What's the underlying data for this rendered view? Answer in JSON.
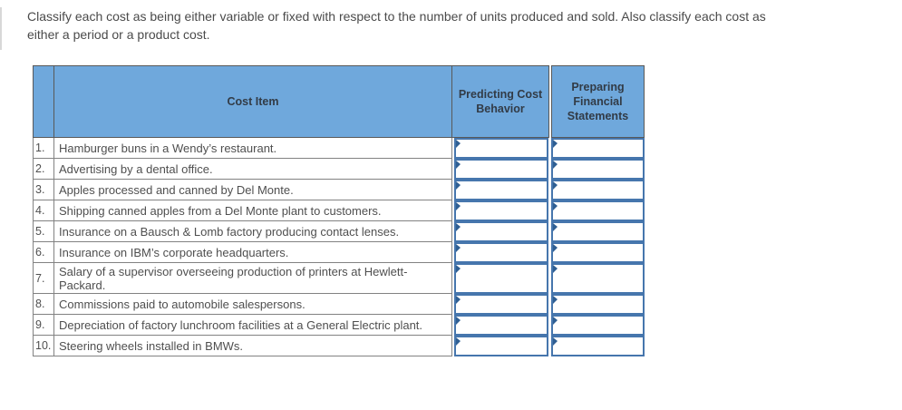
{
  "instructions": {
    "line1": "Classify each cost as being either variable or fixed with respect to the number of units produced and sold. Also classify each cost as",
    "line2": "either a period or a product cost."
  },
  "table": {
    "headers": {
      "cost_item": "Cost Item",
      "predicting": "Predicting Cost Behavior",
      "preparing": "Preparing Financial Statements"
    },
    "rows": [
      {
        "num": "1.",
        "item": "Hamburger buns in a Wendy’s restaurant."
      },
      {
        "num": "2.",
        "item": "Advertising by a dental office."
      },
      {
        "num": "3.",
        "item": "Apples processed and canned by Del Monte."
      },
      {
        "num": "4.",
        "item": "Shipping canned apples from a Del Monte plant to customers."
      },
      {
        "num": "5.",
        "item": "Insurance on a Bausch & Lomb factory producing contact lenses."
      },
      {
        "num": "6.",
        "item": "Insurance on IBM’s corporate headquarters."
      },
      {
        "num": "7.",
        "item": "Salary of a supervisor overseeing production of printers at Hewlett-Packard."
      },
      {
        "num": "8.",
        "item": "Commissions paid to automobile salespersons."
      },
      {
        "num": "9.",
        "item": "Depreciation of factory lunchroom facilities at a General Electric plant."
      },
      {
        "num": "10.",
        "item": "Steering wheels installed in BMWs."
      }
    ],
    "dropdown_cells_state": "empty"
  },
  "colors": {
    "header_bg": "#6fa8dc",
    "header_text": "#323b46",
    "header_border": "#595959",
    "grid_border": "#828282",
    "dropdown_border": "#4676ad",
    "dropdown_arrow": "#2f5f93",
    "body_text": "#4f4f4f",
    "instructions_text": "#4a4a4a"
  }
}
